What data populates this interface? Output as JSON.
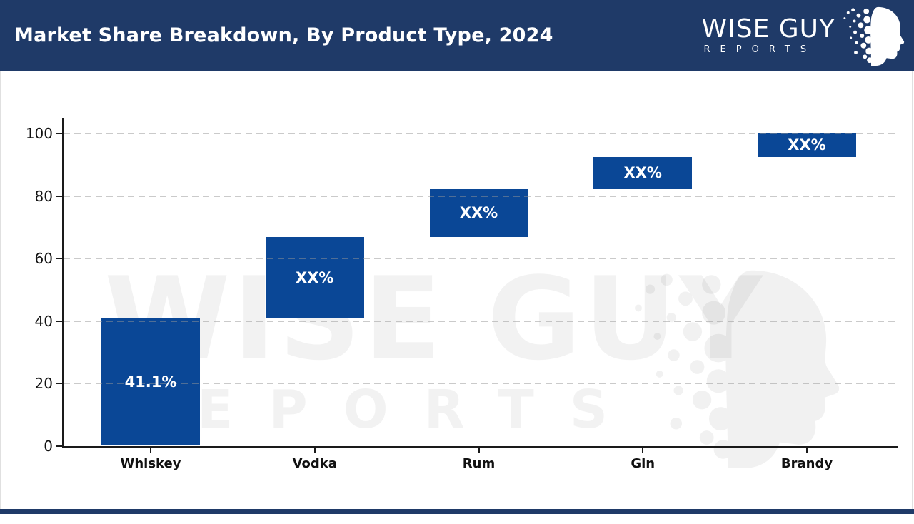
{
  "header": {
    "title": "Market Share Breakdown, By Product Type, 2024",
    "logo": {
      "line1": "WISE GUY",
      "line2": "REPORTS"
    }
  },
  "watermark": {
    "line1": "WISE GUY",
    "line2": "REPORTS"
  },
  "colors": {
    "header_bg": "#1f3a68",
    "bar": "#0a4796",
    "bar_label": "#ffffff",
    "axis": "#1a1a1a",
    "gridline": "#cccccc",
    "watermark": "#f1f1f1"
  },
  "chart_data": {
    "type": "bar",
    "subtype": "waterfall",
    "title": "Market Share Breakdown, By Product Type, 2024",
    "xlabel": "",
    "ylabel": "",
    "categories": [
      "Whiskey",
      "Vodka",
      "Rum",
      "Gin",
      "Brandy"
    ],
    "bars": [
      {
        "category": "Whiskey",
        "start": 0,
        "end": 41.1,
        "value": 41.1,
        "label": "41.1%"
      },
      {
        "category": "Vodka",
        "start": 41.1,
        "end": 66.8,
        "value": 25.7,
        "label": "XX%"
      },
      {
        "category": "Rum",
        "start": 66.8,
        "end": 82.3,
        "value": 15.5,
        "label": "XX%"
      },
      {
        "category": "Gin",
        "start": 82.3,
        "end": 92.6,
        "value": 10.3,
        "label": "XX%"
      },
      {
        "category": "Brandy",
        "start": 92.6,
        "end": 100.0,
        "value": 7.4,
        "label": "XX%"
      }
    ],
    "yticks": [
      0,
      20,
      40,
      60,
      80,
      100
    ],
    "ylim": [
      0,
      105
    ],
    "grid": "horizontal-dashed",
    "legend": "none"
  }
}
